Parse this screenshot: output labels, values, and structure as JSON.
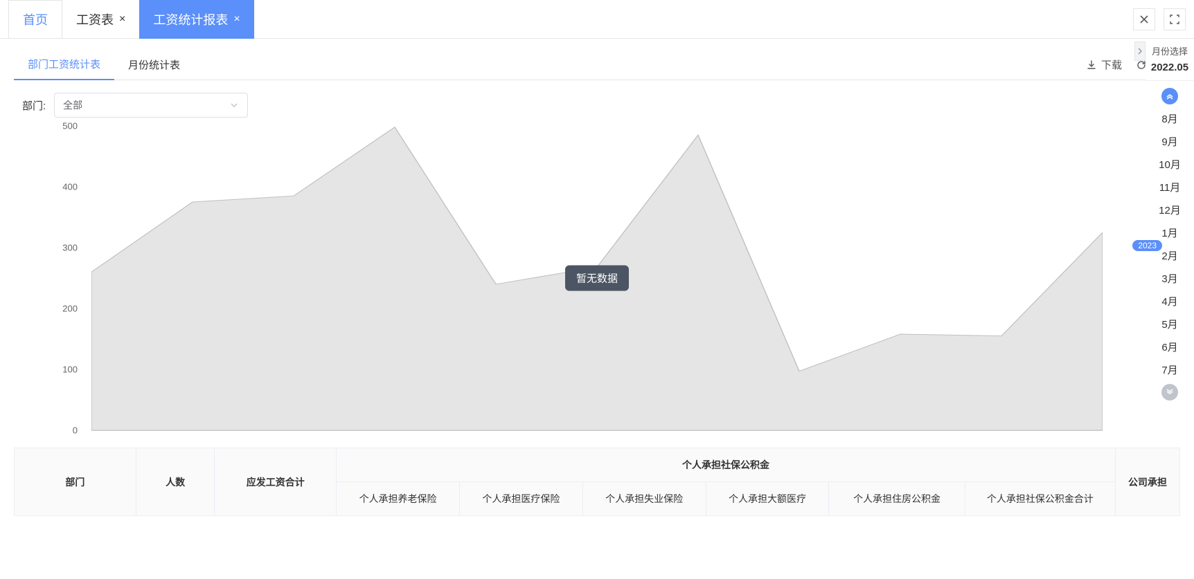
{
  "topbar": {
    "tabs": [
      {
        "label": "首页"
      },
      {
        "label": "工资表"
      },
      {
        "label": "工资统计报表"
      }
    ],
    "close_glyph": "×"
  },
  "subtabs": {
    "tab1": "部门工资统计表",
    "tab2": "月份统计表"
  },
  "toolbar": {
    "download": "下载",
    "refresh": "刷新"
  },
  "filter": {
    "label": "部门:",
    "value": "全部"
  },
  "chart": {
    "type": "area",
    "ylim": [
      0,
      500
    ],
    "ytick_step": 100,
    "yticks": [
      "500",
      "400",
      "300",
      "200",
      "100",
      "0"
    ],
    "series_values": [
      260,
      375,
      385,
      498,
      240,
      268,
      485,
      97,
      158,
      155,
      325
    ],
    "fill_color": "#e5e5e5",
    "stroke_color": "#c0c0c0",
    "background_color": "#ffffff",
    "no_data_label": "暂无数据",
    "no_data_bg": "#4b5563",
    "no_data_text_color": "#ffffff",
    "axis_label_fontsize": 13,
    "axis_label_color": "#666666"
  },
  "table": {
    "col_dept": "部门",
    "col_count": "人数",
    "col_gross": "应发工资合计",
    "group_personal": "个人承担社保公积金",
    "sub_cols": [
      "个人承担养老保险",
      "个人承担医疗保险",
      "个人承担失业保险",
      "个人承担大额医疗",
      "个人承担住房公积金",
      "个人承担社保公积金合计"
    ],
    "col_company_partial": "公司承担"
  },
  "month_panel": {
    "header": "月份选择",
    "current": "2022.05",
    "year_badge": "2023",
    "months": [
      "8月",
      "9月",
      "10月",
      "11月",
      "12月",
      "1月",
      "2月",
      "3月",
      "4月",
      "5月",
      "6月",
      "7月"
    ]
  }
}
